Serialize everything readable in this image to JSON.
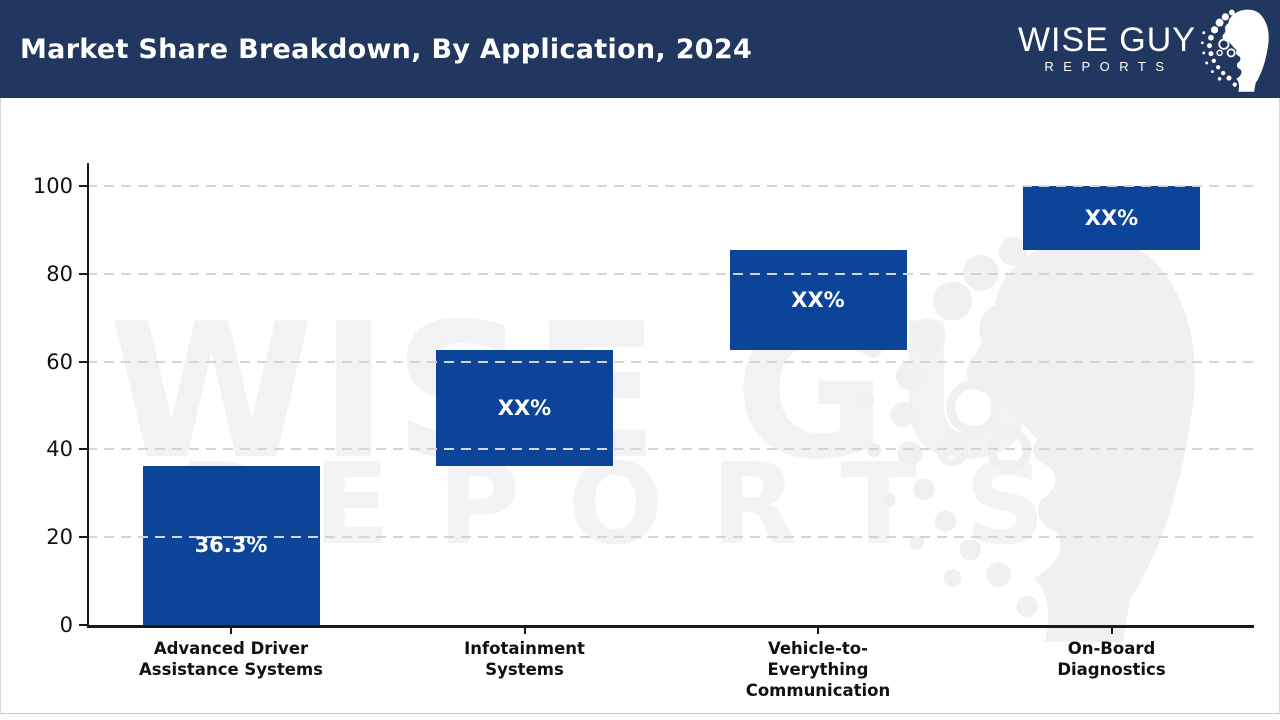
{
  "header": {
    "title": "Market Share Breakdown, By Application, 2024"
  },
  "brand": {
    "name": "WISE GUY",
    "subtitle": "REPORTS"
  },
  "watermark": {
    "line1": "WISE GUY",
    "line2": "REPORTS"
  },
  "chart_data": {
    "type": "bar",
    "subtype": "waterfall-stacked-percentage",
    "title": "Market Share Breakdown, By Application, 2024",
    "xlabel": "",
    "ylabel": "",
    "ylim": [
      0,
      105
    ],
    "yticks": [
      0,
      20,
      40,
      60,
      80,
      100
    ],
    "grid": "dashed-horizontal",
    "legend": "none",
    "bar_color": "#0b4499",
    "label_color": "#ffffff",
    "segments": [
      {
        "category": "Advanced Driver Assistance Systems",
        "category_lines": [
          "Advanced Driver",
          "Assistance Systems"
        ],
        "start": 0,
        "end": 36.3,
        "value": 36.3,
        "label": "36.3%"
      },
      {
        "category": "Infotainment Systems",
        "category_lines": [
          "Infotainment",
          "Systems"
        ],
        "start": 36.3,
        "end": 62.7,
        "value": 26.4,
        "label": "XX%"
      },
      {
        "category": "Vehicle-to-Everything Communication",
        "category_lines": [
          "Vehicle-to-",
          "Everything",
          "Communication"
        ],
        "start": 62.7,
        "end": 85.4,
        "value": 22.7,
        "label": "XX%"
      },
      {
        "category": "On-Board Diagnostics",
        "category_lines": [
          "On-Board",
          "Diagnostics"
        ],
        "start": 85.4,
        "end": 100,
        "value": 14.6,
        "label": "XX%"
      }
    ]
  },
  "colors": {
    "header_bg": "#21375f",
    "bar": "#0b4499",
    "grid": "#d4d4d6",
    "axis": "#1a1a1a",
    "watermark": "#f2f2f4"
  }
}
